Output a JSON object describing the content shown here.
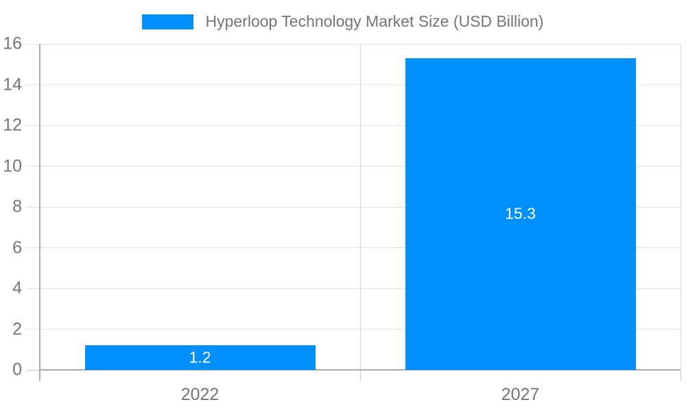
{
  "chart_data": {
    "type": "bar",
    "title": "Hyperloop Technology Market Size (USD Billion)",
    "categories": [
      "2022",
      "2027"
    ],
    "series": [
      {
        "name": "Hyperloop Technology Market Size (USD Billion)",
        "values": [
          1.2,
          15.3
        ],
        "value_labels": [
          "1.2",
          "15.3"
        ]
      }
    ],
    "xlabel": "",
    "ylabel": "",
    "ylim": [
      0,
      16
    ],
    "yticks": [
      0,
      2,
      4,
      6,
      8,
      10,
      12,
      14,
      16
    ],
    "grid": true,
    "legend_position": "top"
  },
  "colors": {
    "bar": "#008FFB",
    "grid": "#e2e2e2",
    "grid_vertical": "#dadada",
    "axis": "#ababab",
    "tick": "#c9c9c9",
    "label_text": "#757575",
    "value_text": "#ffffff",
    "background": "#ffffff"
  }
}
